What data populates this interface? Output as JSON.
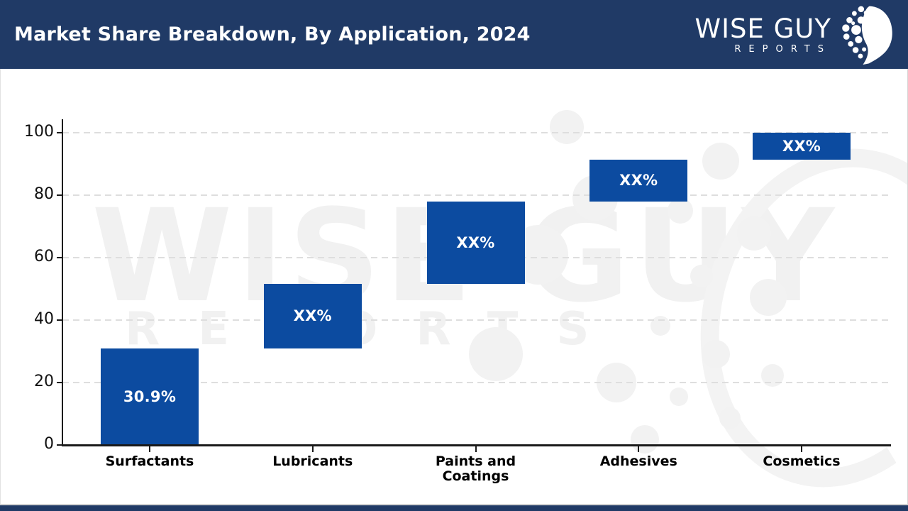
{
  "header": {
    "title": "Market Share Breakdown, By Application, 2024",
    "background_color": "#203a66",
    "logo": {
      "wordmark": "WISE GUY",
      "subtext": "REPORTS",
      "face_icon": "dotted-face-profile"
    }
  },
  "watermark": {
    "line1": "WISE GUY",
    "line2": "REPORTS"
  },
  "chart_data": {
    "type": "bar",
    "subtype": "floating-segment-waterfall",
    "title": "Market Share Breakdown, By Application, 2024",
    "xlabel": "",
    "ylabel": "",
    "ylim": [
      0,
      100
    ],
    "y_ticks": [
      0,
      20,
      40,
      60,
      80,
      100
    ],
    "grid": "horizontal-dashed",
    "legend": "none",
    "bar_color": "#0c4ba0",
    "bar_label_color": "#ffffff",
    "categories": [
      "Surfactants",
      "Lubricants",
      "Paints and Coatings",
      "Adhesives",
      "Cosmetics"
    ],
    "category_label_lines": [
      [
        "Surfactants"
      ],
      [
        "Lubricants"
      ],
      [
        "Paints and",
        "Coatings"
      ],
      [
        "Adhesives"
      ],
      [
        "Cosmetics"
      ]
    ],
    "bars": [
      {
        "category": "Surfactants",
        "start": 0,
        "end": 30.9,
        "segment_value": 30.9,
        "label": "30.9%"
      },
      {
        "category": "Lubricants",
        "start": 30.9,
        "end": 51.6,
        "segment_value": 20.7,
        "label": "XX%"
      },
      {
        "category": "Paints and Coatings",
        "start": 51.6,
        "end": 78.0,
        "segment_value": 26.4,
        "label": "XX%"
      },
      {
        "category": "Adhesives",
        "start": 78.0,
        "end": 91.4,
        "segment_value": 13.4,
        "label": "XX%"
      },
      {
        "category": "Cosmetics",
        "start": 91.4,
        "end": 100.0,
        "segment_value": 8.6,
        "label": "XX%"
      }
    ]
  }
}
